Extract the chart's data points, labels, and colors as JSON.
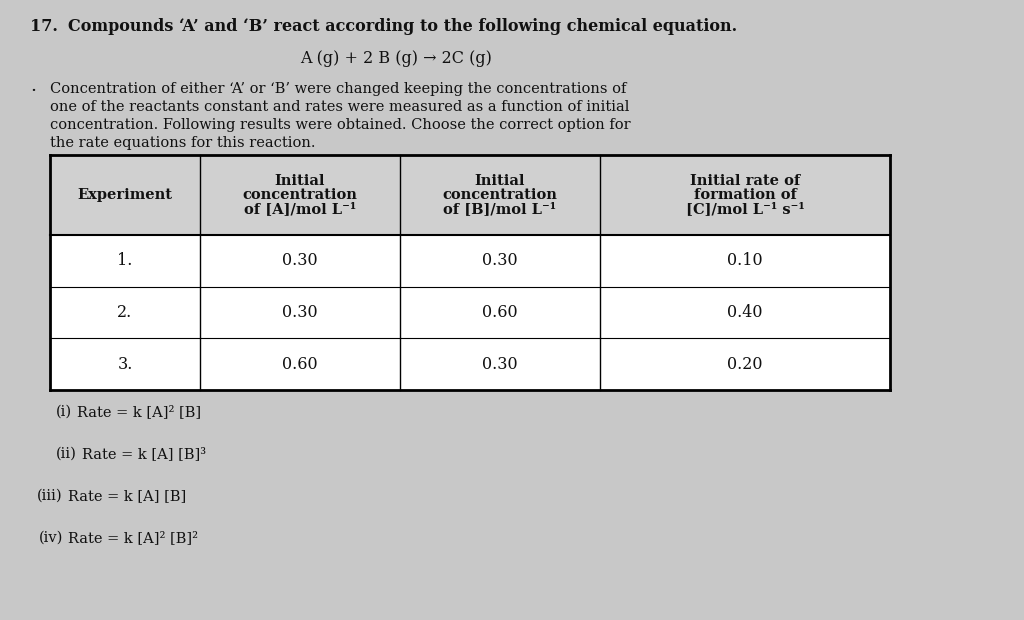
{
  "title_number": "17.",
  "title_text": "Compounds ‘A’ and ‘B’ react according to the following chemical equation.",
  "equation": "A (g) + 2 B (g) → 2C (g)",
  "para_line1": "Concentration of either ‘A’ or ‘B’ were changed keeping the concentrations of",
  "para_line2": "one of the reactants constant and rates were measured as a function of initial",
  "para_line3": "concentration. Following results were obtained. Choose the correct option for",
  "para_line4": "the rate equations for this reaction.",
  "col_headers": [
    "Experiment",
    "Initial\nconcentration\nof [A]/mol L⁻¹",
    "Initial\nconcentration\nof [B]/mol L⁻¹",
    "Initial rate of\nformation of\n[C]/mol L⁻¹ s⁻¹"
  ],
  "table_data": [
    [
      "1.",
      "0.30",
      "0.30",
      "0.10"
    ],
    [
      "2.",
      "0.30",
      "0.60",
      "0.40"
    ],
    [
      "3.",
      "0.60",
      "0.30",
      "0.20"
    ]
  ],
  "options": [
    [
      "(i)",
      "Rate = k [A]² [B]"
    ],
    [
      "(ii)",
      "Rate = k [A] [B]³"
    ],
    [
      "(iii)",
      "Rate = k [A] [B]"
    ],
    [
      "(iv)",
      "Rate = k [A]² [B]²"
    ]
  ],
  "bg_color": "#c8c8c8",
  "text_color": "#111111",
  "table_bg": "#ffffff",
  "header_bg": "#d0d0d0",
  "font_size": 11.5,
  "small_font": 10.5
}
